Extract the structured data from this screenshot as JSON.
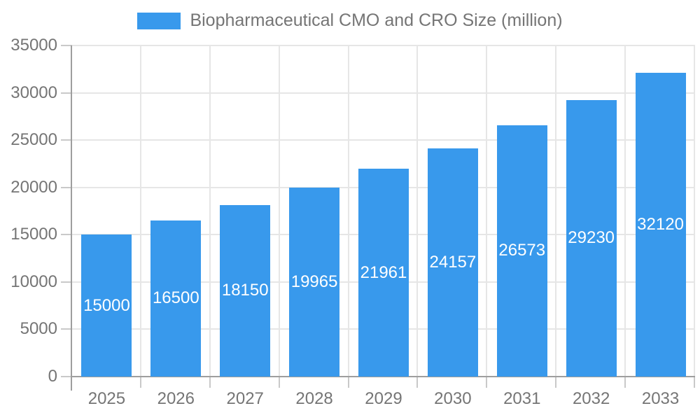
{
  "chart_data": {
    "type": "bar",
    "title": "Biopharmaceutical CMO and CRO Size (million)",
    "legend": {
      "label": "Biopharmaceutical CMO and CRO Size (million)",
      "position": "top"
    },
    "categories": [
      "2025",
      "2026",
      "2027",
      "2028",
      "2029",
      "2030",
      "2031",
      "2032",
      "2033"
    ],
    "values": [
      15000,
      16500,
      18150,
      19965,
      21961,
      24157,
      26573,
      29230,
      32120
    ],
    "data_labels": [
      "15000",
      "16500",
      "18150",
      "19965",
      "21961",
      "24157",
      "26573",
      "29230",
      "32120"
    ],
    "xlabel": "",
    "ylabel": "",
    "ylim": [
      0,
      35000
    ],
    "ytick_step": 5000,
    "ytick_labels": [
      "0",
      "5000",
      "10000",
      "15000",
      "20000",
      "25000",
      "30000",
      "35000"
    ],
    "grid": true,
    "legend_position": "top",
    "colors": {
      "bar": "#3899EC",
      "bar_label_text": "#FFFFFF",
      "axis_text": "#757575",
      "axis_line": "#9E9E9E",
      "gridline": "#E6E6E6",
      "tick": "#C9C9C9",
      "background": "#FFFFFF"
    }
  }
}
